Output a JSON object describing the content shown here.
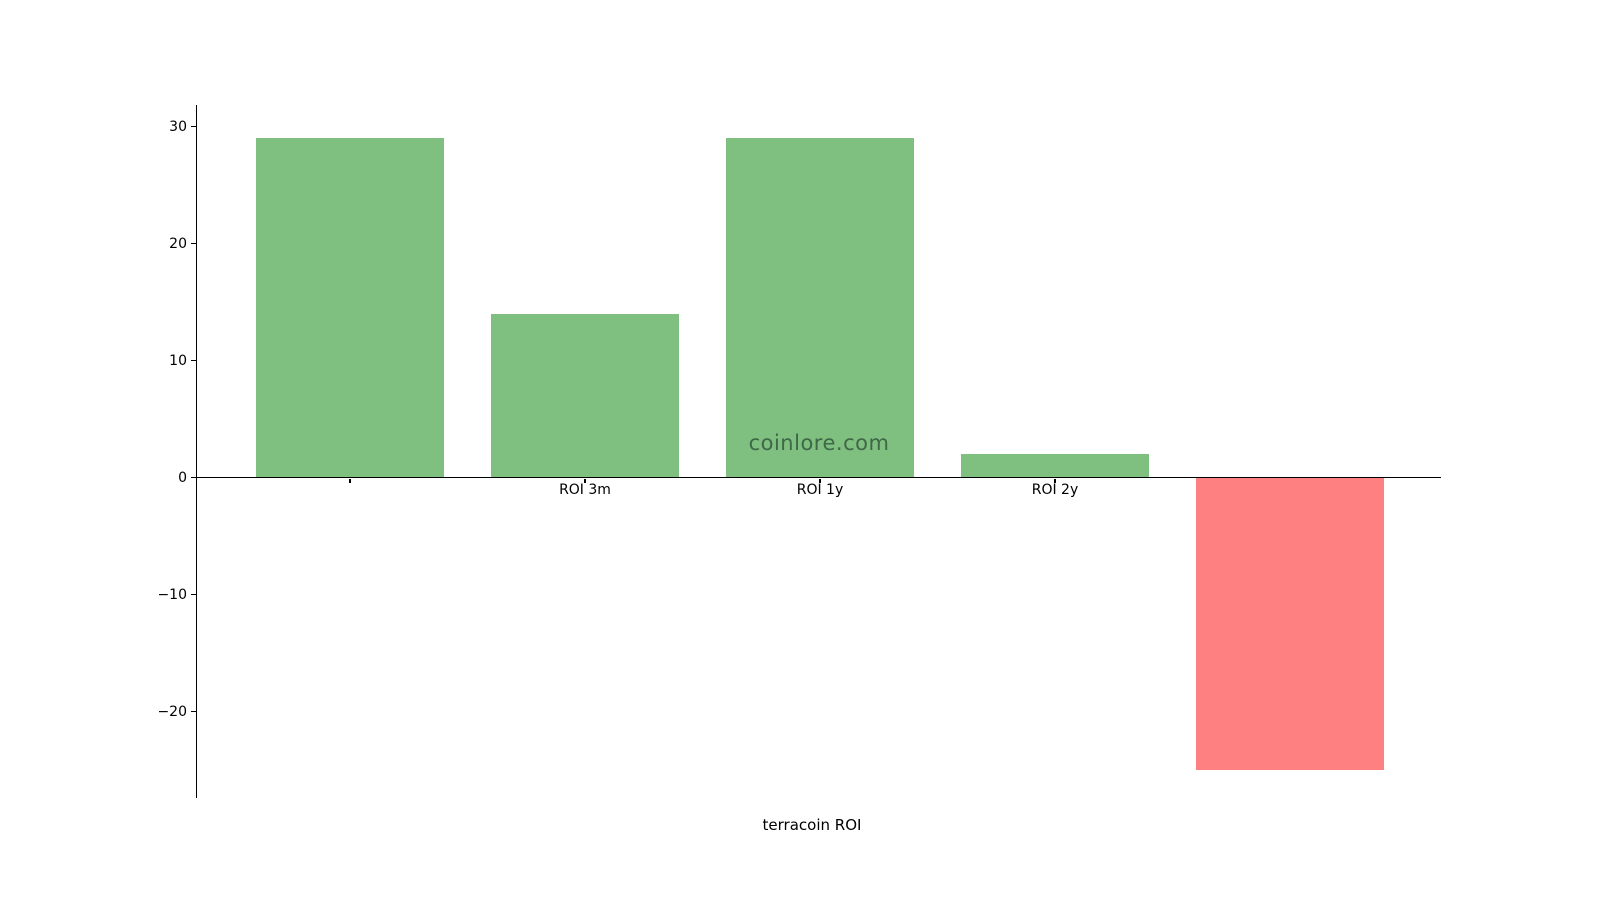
{
  "chart_data": {
    "type": "bar",
    "title": "",
    "xlabel": "terracoin ROI",
    "ylabel": "",
    "categories": [
      "",
      "ROI 3m",
      "ROI 1y",
      "ROI 2y",
      ""
    ],
    "values": [
      29,
      14,
      29,
      2,
      -25
    ],
    "yticks": [
      30,
      20,
      10,
      0,
      -10,
      -20
    ],
    "ytick_labels": [
      "30",
      "20",
      "10",
      "0",
      "−10",
      "−20"
    ],
    "ylim": [
      -27.4,
      31.8
    ],
    "grid": false,
    "legend": "none",
    "colors": {
      "positive_bar": "#7fbf7f",
      "negative_bar": "#ff8080",
      "axis": "#000000",
      "tick_label": "#000000"
    }
  },
  "watermark": {
    "text": "coinlore.com",
    "color": "#3e6848"
  }
}
